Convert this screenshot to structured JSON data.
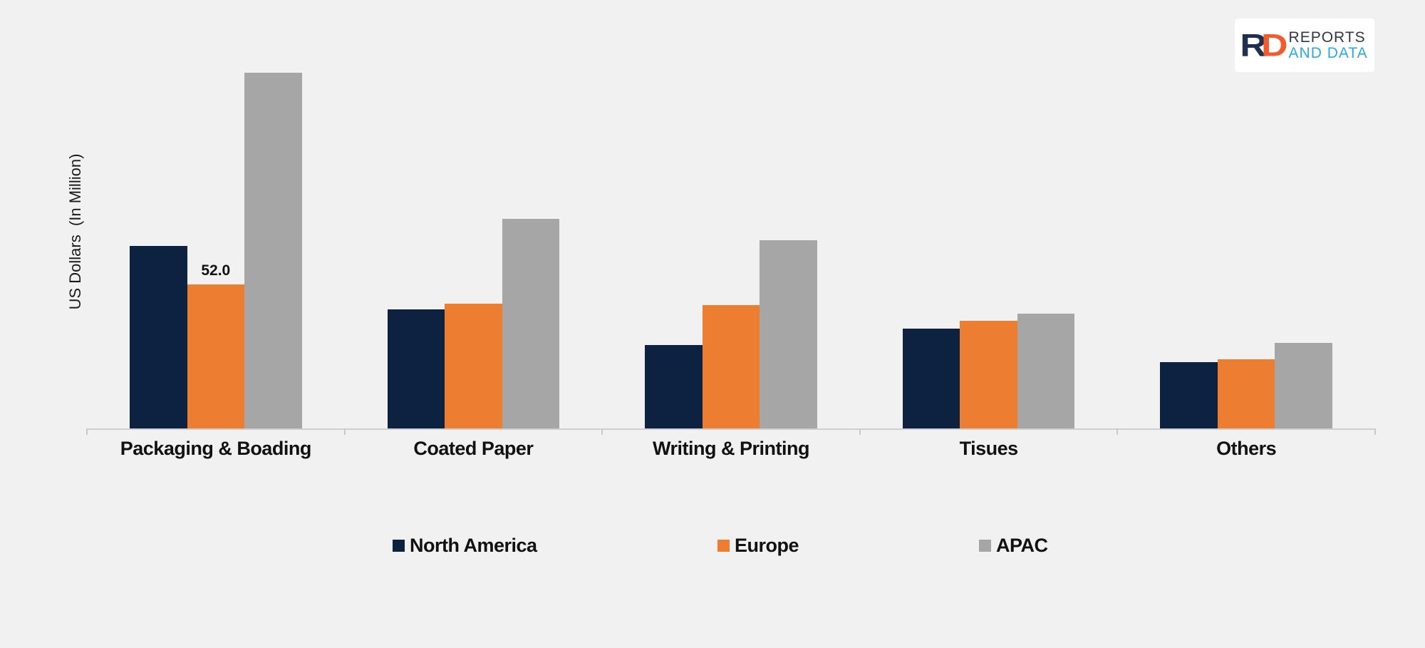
{
  "page": {
    "background_color": "#f1f1f2"
  },
  "logo": {
    "monogram_r": "R",
    "monogram_d": "D",
    "monogram_r_color": "#1d3050",
    "monogram_d_color": "#f15b2e",
    "line1": "REPORTS",
    "line2": "AND DATA",
    "line1_color": "#32373f",
    "line2_color": "#29a9e0"
  },
  "chart_data": {
    "type": "bar",
    "title": "",
    "ylabel": "US Dollars  (In Million)",
    "categories": [
      "Packaging & Boading",
      "Coated Paper",
      "Writing & Printing",
      "Tisues",
      "Others"
    ],
    "series": [
      {
        "name": "North America",
        "color": "#0d2240",
        "values": [
          66,
          43,
          30,
          36,
          24
        ]
      },
      {
        "name": "Europe",
        "color": "#ed7d31",
        "values": [
          52,
          45,
          44.5,
          39,
          25
        ]
      },
      {
        "name": "APAC",
        "color": "#a6a6a6",
        "values": [
          128.5,
          75.7,
          68,
          41.5,
          31
        ]
      }
    ],
    "ylim": [
      0,
      135
    ],
    "grid": false,
    "x_axis_visible": true,
    "y_axis_ticks_visible": false,
    "legend_position": "bottom",
    "data_labels": [
      {
        "series_index": 1,
        "category_index": 0,
        "text": "52.0"
      }
    ],
    "axis_color": "#cfcfcf",
    "label_color": "#111111"
  }
}
